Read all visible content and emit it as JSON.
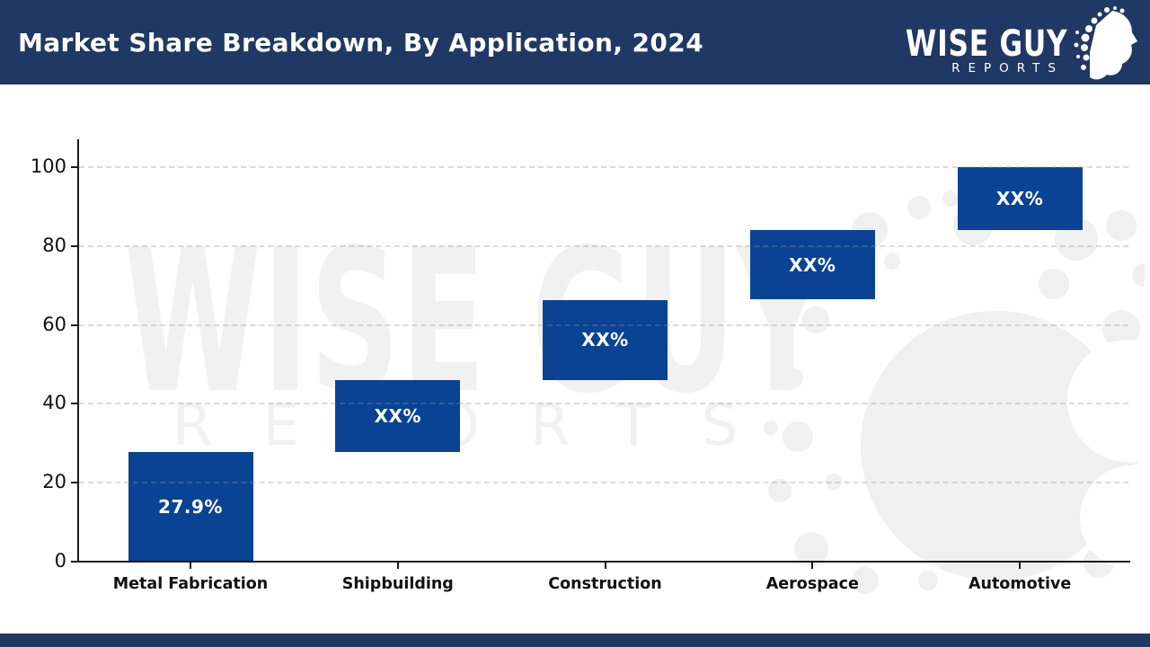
{
  "header": {
    "title": "Market Share Breakdown, By Application, 2024",
    "brand": {
      "line1": "WISE GUY",
      "line2": "REPORTS"
    }
  },
  "watermark": {
    "line1": "WISE GUY",
    "line2": "REPORTS"
  },
  "footer": {},
  "colors": {
    "band_navy": "#1f3864",
    "bar_blue": "#0a4394",
    "bar_label": "#ffffff",
    "watermark_gray": "#f1f1f1",
    "axis_black": "#1a1a1a"
  },
  "chart_data": {
    "type": "bar",
    "variant": "waterfall",
    "title": "Market Share Breakdown, By Application, 2024",
    "categories": [
      "Metal Fabrication",
      "Shipbuilding",
      "Construction",
      "Aerospace",
      "Automotive"
    ],
    "segments": [
      {
        "category": "Metal Fabrication",
        "start": 0,
        "end": 27.9,
        "label": "27.9%"
      },
      {
        "category": "Shipbuilding",
        "start": 27.9,
        "end": 46.0,
        "label": "XX%"
      },
      {
        "category": "Construction",
        "start": 46.0,
        "end": 66.4,
        "label": "XX%"
      },
      {
        "category": "Aerospace",
        "start": 66.4,
        "end": 84.0,
        "label": "XX%"
      },
      {
        "category": "Automotive",
        "start": 84.0,
        "end": 100.0,
        "label": "XX%"
      }
    ],
    "xlabel": "",
    "ylabel": "",
    "ylim": [
      0,
      100
    ],
    "yticks": [
      0,
      20,
      40,
      60,
      80,
      100
    ],
    "grid": "horizontal dashed",
    "legend": "none",
    "bar_color": "#0a4394",
    "bar_label_color": "#ffffff"
  }
}
